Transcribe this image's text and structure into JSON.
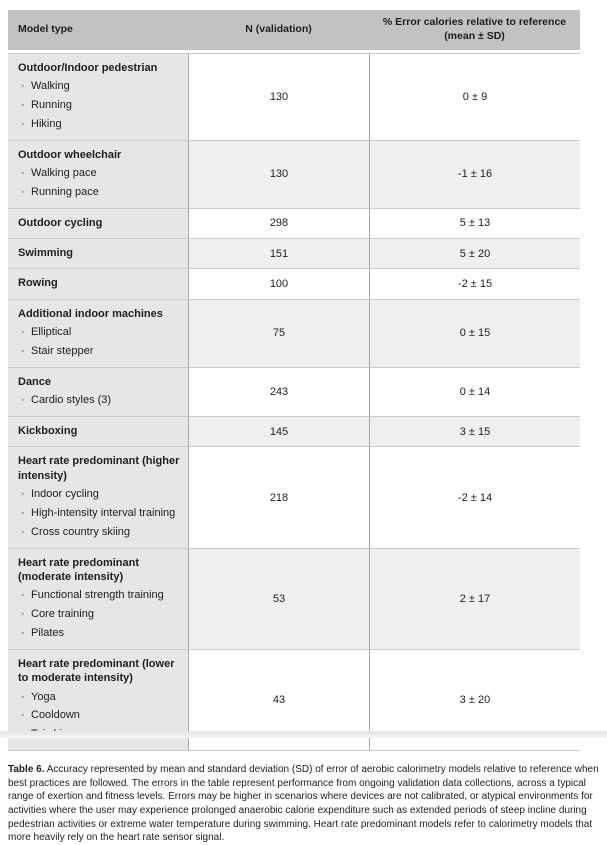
{
  "colors": {
    "header_bg": "#c2c2c2",
    "col1_bg": "#e6e6e6",
    "alt_row_bg": "#efefef",
    "border_h": "#cacaca",
    "border_v": "#a8a8a8",
    "text": "#1d1d1f",
    "page_bg": "#ffffff",
    "bottom_bar": "#ececec"
  },
  "table": {
    "header": {
      "col1": "Model type",
      "col2": "N (validation)",
      "col3_line1": "% Error calories relative to reference",
      "col3_line2": "(mean ± SD)"
    },
    "rows": [
      {
        "model_type": "Outdoor/Indoor pedestrian",
        "subtypes": [
          "Walking",
          "Running",
          "Hiking"
        ],
        "n": "130",
        "error": "0 ± 9"
      },
      {
        "model_type": "Outdoor wheelchair",
        "subtypes": [
          "Walking pace",
          "Running pace"
        ],
        "n": "130",
        "error": "-1 ± 16"
      },
      {
        "model_type": "Outdoor cycling",
        "subtypes": [],
        "n": "298",
        "error": "5 ± 13"
      },
      {
        "model_type": "Swimming",
        "subtypes": [],
        "n": "151",
        "error": "5 ± 20"
      },
      {
        "model_type": "Rowing",
        "subtypes": [],
        "n": "100",
        "error": "-2 ± 15"
      },
      {
        "model_type": "Additional indoor machines",
        "subtypes": [
          "Elliptical",
          "Stair stepper"
        ],
        "n": "75",
        "error": "0 ± 15"
      },
      {
        "model_type": "Dance",
        "subtypes": [
          "Cardio styles (3)"
        ],
        "n": "243",
        "error": "0 ± 14"
      },
      {
        "model_type": "Kickboxing",
        "subtypes": [],
        "n": "145",
        "error": "3 ± 15"
      },
      {
        "model_type": "Heart rate predominant (higher intensity)",
        "subtypes": [
          "Indoor cycling",
          "High-intensity interval training",
          "Cross country skiing"
        ],
        "n": "218",
        "error": "-2 ± 14"
      },
      {
        "model_type": "Heart rate predominant (moderate intensity)",
        "subtypes": [
          "Functional strength training",
          "Core training",
          "Pilates"
        ],
        "n": "53",
        "error": "2 ± 17"
      },
      {
        "model_type": "Heart rate predominant (lower to moderate intensity)",
        "subtypes": [
          "Yoga",
          "Cooldown",
          "Tai chi"
        ],
        "n": "43",
        "error": "3 ± 20"
      }
    ]
  },
  "caption": {
    "label": "Table 6.",
    "text": "Accuracy represented by mean and standard deviation (SD) of error of aerobic calorimetry models relative to reference when best practices are followed. The errors in the table represent performance from ongoing validation data collections, across a typical range of exertion and fitness levels. Errors may be higher in scenarios where devices are not calibrated, or atypical environments for activities where the user may experience prolonged anaerobic calorie expenditure such as extended periods of steep incline during pedestrian activities or extreme water temperature during swimming. Heart rate predominant models refer to calorimetry models that more heavily rely on the heart rate sensor signal."
  }
}
